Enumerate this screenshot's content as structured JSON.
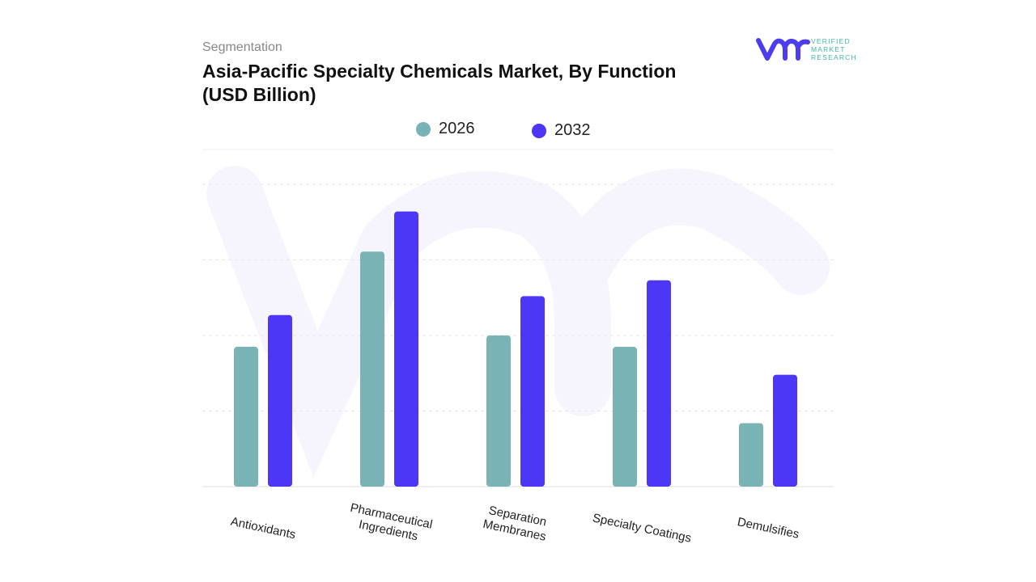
{
  "header": {
    "segment_label": "Segmentation",
    "title": "Asia-Pacific Specialty Chemicals Market, By Function (USD Billion)"
  },
  "logo": {
    "text": "VERIFIED MARKET RESEARCH",
    "mark": "vmr",
    "color": "#4b3cf0",
    "text_color": "#3fb6a8"
  },
  "chart_data": {
    "type": "bar",
    "title": "Asia-Pacific Specialty Chemicals Market, By Function (USD Billion)",
    "categories": [
      "Antioxidants",
      "Pharmaceutical Ingredients",
      "Separation Membranes",
      "Specialty Coatings",
      "Demulsifies"
    ],
    "series": [
      {
        "name": "2026",
        "color": "#7ab3b6",
        "values": [
          1.85,
          3.11,
          2.0,
          1.85,
          0.84
        ]
      },
      {
        "name": "2032",
        "color": "#4b37f5",
        "values": [
          2.27,
          3.64,
          2.52,
          2.73,
          1.48
        ]
      }
    ],
    "ylim": [
      0,
      4
    ],
    "y_tick_labels_shown": false,
    "grid": true,
    "legend": "top-center",
    "xlabel": "",
    "ylabel": ""
  }
}
